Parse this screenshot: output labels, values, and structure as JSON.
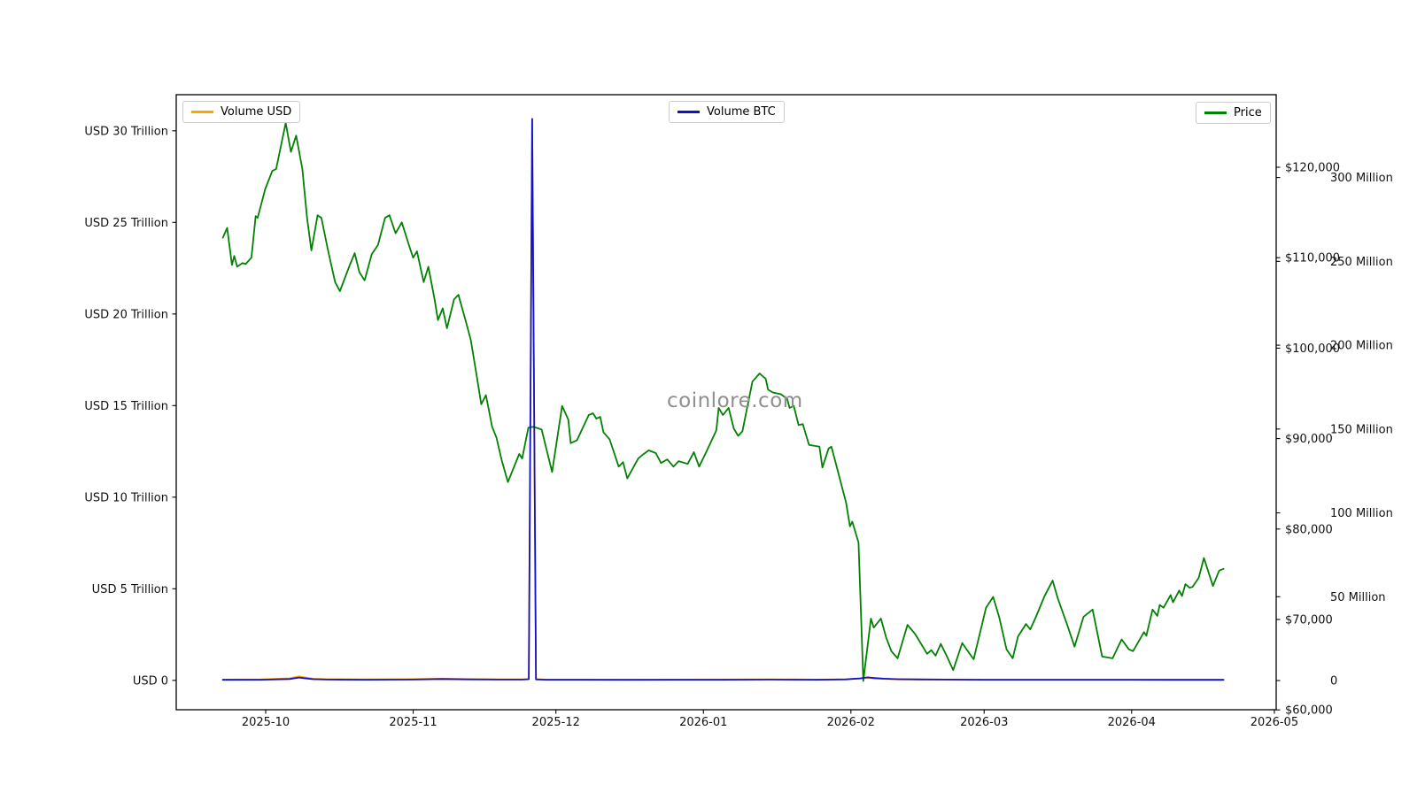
{
  "watermark": "coinlore.com",
  "legends": [
    {
      "label": "Volume USD",
      "color": "#ffa500"
    },
    {
      "label": "Volume BTC",
      "color": "#1111cd"
    },
    {
      "label": "Price",
      "color": "#038103"
    }
  ],
  "colors": {
    "frame": "#000000",
    "tick_text": "#111111",
    "watermark": "#8f8f8f",
    "background": "#ffffff"
  },
  "chart_data": {
    "type": "line",
    "title": "",
    "xlabel": "",
    "ylabel": "",
    "grid": false,
    "x_unit": "days since first data point (approx 2025-09-22)",
    "x_range_dates": [
      "2025-09-22",
      "2026-04-21"
    ],
    "x_axis": {
      "ticks": [
        {
          "label": "2025-10",
          "t": 9
        },
        {
          "label": "2025-11",
          "t": 40
        },
        {
          "label": "2025-12",
          "t": 70
        },
        {
          "label": "2026-01",
          "t": 101
        },
        {
          "label": "2026-02",
          "t": 132
        },
        {
          "label": "2026-03",
          "t": 160
        },
        {
          "label": "2026-04",
          "t": 191
        },
        {
          "label": "2026-05",
          "t": 221
        }
      ]
    },
    "left_axis": {
      "unit": "USD Trillion (volume)",
      "approx_limits": [
        -1.5,
        32
      ],
      "ticks": [
        {
          "label": "USD 30 Trillion",
          "value": 30
        },
        {
          "label": "USD 25 Trillion",
          "value": 25
        },
        {
          "label": "USD 20 Trillion",
          "value": 20
        },
        {
          "label": "USD 15 Trillion",
          "value": 15
        },
        {
          "label": "USD 10 Trillion",
          "value": 10
        },
        {
          "label": "USD 5 Trillion",
          "value": 5
        },
        {
          "label": "USD 0",
          "value": 0
        }
      ]
    },
    "right_price_axis": {
      "unit": "USD (BTC price)",
      "approx_limits": [
        60000,
        128000
      ],
      "ticks": [
        {
          "label": "$120,000",
          "value": 120000
        },
        {
          "label": "$110,000",
          "value": 110000
        },
        {
          "label": "$100,000",
          "value": 100000
        },
        {
          "label": "$90,000",
          "value": 90000
        },
        {
          "label": "$80,000",
          "value": 80000
        },
        {
          "label": "$70,000",
          "value": 70000
        },
        {
          "label": "$60,000",
          "value": 60000
        }
      ]
    },
    "right_btc_axis": {
      "unit": "BTC Million (volume)",
      "approx_limits": [
        -16,
        350
      ],
      "ticks": [
        {
          "label": "300 Million",
          "value": 300
        },
        {
          "label": "250 Million",
          "value": 250
        },
        {
          "label": "200 Million",
          "value": 200
        },
        {
          "label": "150 Million",
          "value": 150
        },
        {
          "label": "100 Million",
          "value": 100
        },
        {
          "label": "50 Million",
          "value": 50
        },
        {
          "label": "0",
          "value": 0
        }
      ]
    },
    "series": [
      {
        "name": "Volume USD",
        "axis": "trillion",
        "color": "#ffa500",
        "note": "flat near 0 except one-day spike ~30.6T, hidden under Volume BTC line",
        "points": [
          [
            0,
            0.045
          ],
          [
            8,
            0.057
          ],
          [
            14,
            0.11
          ],
          [
            16,
            0.22
          ],
          [
            17,
            0.17
          ],
          [
            19,
            0.09
          ],
          [
            22,
            0.065
          ],
          [
            30,
            0.055
          ],
          [
            40,
            0.066
          ],
          [
            46,
            0.095
          ],
          [
            52,
            0.07
          ],
          [
            58,
            0.055
          ],
          [
            63,
            0.055
          ],
          [
            64.3,
            0.073
          ],
          [
            65,
            30.6
          ],
          [
            65.8,
            0.064
          ],
          [
            68,
            0.045
          ],
          [
            75,
            0.044
          ],
          [
            85,
            0.035
          ],
          [
            95,
            0.044
          ],
          [
            105,
            0.047
          ],
          [
            115,
            0.057
          ],
          [
            125,
            0.044
          ],
          [
            131,
            0.058
          ],
          [
            134,
            0.095
          ],
          [
            135.5,
            0.13
          ],
          [
            137,
            0.1
          ],
          [
            139,
            0.077
          ],
          [
            142,
            0.054
          ],
          [
            146,
            0.047
          ],
          [
            152,
            0.04
          ],
          [
            160,
            0.035
          ],
          [
            170,
            0.035
          ],
          [
            180,
            0.035
          ],
          [
            190,
            0.035
          ],
          [
            200,
            0.029
          ],
          [
            210.3,
            0.03
          ]
        ]
      },
      {
        "name": "Price",
        "axis": "price",
        "color": "#038103",
        "points": [
          [
            0,
            112200
          ],
          [
            0.9,
            113300
          ],
          [
            1.9,
            109200
          ],
          [
            2.4,
            110200
          ],
          [
            3,
            109000
          ],
          [
            4.1,
            109400
          ],
          [
            4.8,
            109300
          ],
          [
            6,
            110000
          ],
          [
            6.9,
            114600
          ],
          [
            7.3,
            114400
          ],
          [
            8.9,
            117600
          ],
          [
            10.4,
            119600
          ],
          [
            11.2,
            119800
          ],
          [
            13.2,
            124900
          ],
          [
            14.3,
            121700
          ],
          [
            15.4,
            123500
          ],
          [
            16.7,
            119800
          ],
          [
            17.7,
            114400
          ],
          [
            18.6,
            110800
          ],
          [
            19.9,
            114700
          ],
          [
            20.7,
            114400
          ],
          [
            22.1,
            110800
          ],
          [
            23.6,
            107300
          ],
          [
            24.6,
            106300
          ],
          [
            26.6,
            109100
          ],
          [
            27.7,
            110500
          ],
          [
            28.7,
            108400
          ],
          [
            29.8,
            107500
          ],
          [
            31.3,
            110400
          ],
          [
            32.6,
            111400
          ],
          [
            34.1,
            114400
          ],
          [
            35,
            114700
          ],
          [
            36.3,
            112700
          ],
          [
            37.6,
            113900
          ],
          [
            39.1,
            111400
          ],
          [
            40,
            110000
          ],
          [
            40.8,
            110700
          ],
          [
            42.2,
            107300
          ],
          [
            43.2,
            109000
          ],
          [
            44.5,
            105400
          ],
          [
            45.2,
            103100
          ],
          [
            46.2,
            104400
          ],
          [
            47.1,
            102200
          ],
          [
            48.6,
            105400
          ],
          [
            49.5,
            105900
          ],
          [
            51.2,
            102700
          ],
          [
            52.1,
            100900
          ],
          [
            53.4,
            96800
          ],
          [
            54.3,
            93800
          ],
          [
            55.3,
            94800
          ],
          [
            56.6,
            91300
          ],
          [
            57.5,
            90100
          ],
          [
            58.6,
            87600
          ],
          [
            59.9,
            85200
          ],
          [
            62.3,
            88300
          ],
          [
            62.9,
            87800
          ],
          [
            64.2,
            91200
          ],
          [
            65.3,
            91300
          ],
          [
            67,
            91000
          ],
          [
            69.2,
            86300
          ],
          [
            71.3,
            93600
          ],
          [
            72.6,
            92100
          ],
          [
            73.1,
            89500
          ],
          [
            74.4,
            89800
          ],
          [
            76.9,
            92600
          ],
          [
            77.8,
            92800
          ],
          [
            78.5,
            92200
          ],
          [
            79.3,
            92400
          ],
          [
            80,
            90700
          ],
          [
            81.3,
            89900
          ],
          [
            83.2,
            86900
          ],
          [
            84.1,
            87400
          ],
          [
            85,
            85600
          ],
          [
            87.3,
            87800
          ],
          [
            88.2,
            88200
          ],
          [
            89.5,
            88700
          ],
          [
            91,
            88400
          ],
          [
            92.1,
            87300
          ],
          [
            93.4,
            87700
          ],
          [
            94.7,
            86900
          ],
          [
            95.8,
            87500
          ],
          [
            97.7,
            87200
          ],
          [
            99,
            88500
          ],
          [
            100.1,
            86900
          ],
          [
            101.4,
            88300
          ],
          [
            103.7,
            90900
          ],
          [
            104.2,
            93400
          ],
          [
            105.1,
            92600
          ],
          [
            106.3,
            93400
          ],
          [
            107.4,
            91100
          ],
          [
            108.3,
            90300
          ],
          [
            109.2,
            90800
          ],
          [
            111.3,
            96300
          ],
          [
            112.8,
            97200
          ],
          [
            114.1,
            96600
          ],
          [
            114.6,
            95400
          ],
          [
            115.6,
            95100
          ],
          [
            117.3,
            94900
          ],
          [
            118.6,
            94400
          ],
          [
            119.1,
            93400
          ],
          [
            120,
            93600
          ],
          [
            121,
            91500
          ],
          [
            121.9,
            91600
          ],
          [
            123.2,
            89300
          ],
          [
            125.4,
            89100
          ],
          [
            126,
            86800
          ],
          [
            127.3,
            88900
          ],
          [
            127.9,
            89100
          ],
          [
            129.2,
            86500
          ],
          [
            131,
            82900
          ],
          [
            131.8,
            80300
          ],
          [
            132.3,
            80800
          ],
          [
            133.6,
            78500
          ],
          [
            134.6,
            63200
          ],
          [
            136.2,
            70100
          ],
          [
            136.8,
            69100
          ],
          [
            138.3,
            70100
          ],
          [
            139.4,
            68000
          ],
          [
            140.5,
            66500
          ],
          [
            141.8,
            65700
          ],
          [
            143.9,
            69400
          ],
          [
            145.5,
            68400
          ],
          [
            148,
            66200
          ],
          [
            148.9,
            66600
          ],
          [
            149.8,
            66000
          ],
          [
            150.9,
            67300
          ],
          [
            152.1,
            66000
          ],
          [
            153.5,
            64400
          ],
          [
            155.4,
            67400
          ],
          [
            156.3,
            66700
          ],
          [
            157.8,
            65600
          ],
          [
            160.4,
            71300
          ],
          [
            161.9,
            72500
          ],
          [
            163.2,
            70200
          ],
          [
            164.7,
            66700
          ],
          [
            166,
            65700
          ],
          [
            167.1,
            68100
          ],
          [
            168.8,
            69500
          ],
          [
            169.7,
            68900
          ],
          [
            170.9,
            70300
          ],
          [
            172.7,
            72600
          ],
          [
            174.4,
            74300
          ],
          [
            175.5,
            72300
          ],
          [
            177.4,
            69500
          ],
          [
            179,
            67000
          ],
          [
            180.9,
            70300
          ],
          [
            182.8,
            71100
          ],
          [
            184.8,
            65900
          ],
          [
            187,
            65700
          ],
          [
            188.9,
            67800
          ],
          [
            190.4,
            66700
          ],
          [
            191.3,
            66500
          ],
          [
            193.6,
            68600
          ],
          [
            194.1,
            68200
          ],
          [
            195.4,
            71100
          ],
          [
            196.4,
            70400
          ],
          [
            196.9,
            71600
          ],
          [
            197.7,
            71300
          ],
          [
            199.2,
            72700
          ],
          [
            199.7,
            71900
          ],
          [
            201,
            73200
          ],
          [
            201.6,
            72600
          ],
          [
            202.3,
            73900
          ],
          [
            203.2,
            73500
          ],
          [
            203.8,
            73600
          ],
          [
            205.1,
            74600
          ],
          [
            206.2,
            76800
          ],
          [
            208.1,
            73700
          ],
          [
            209.4,
            75400
          ],
          [
            210.3,
            75600
          ]
        ]
      },
      {
        "name": "Volume BTC",
        "axis": "btc",
        "color": "#1111cd",
        "note": "flat near 0 except one-day spike ~335 Million around 2025-11-26",
        "points": [
          [
            0,
            0.4
          ],
          [
            8,
            0.5
          ],
          [
            14,
            0.9
          ],
          [
            16,
            1.8
          ],
          [
            17,
            1.4
          ],
          [
            19,
            0.8
          ],
          [
            22,
            0.6
          ],
          [
            30,
            0.5
          ],
          [
            40,
            0.6
          ],
          [
            46,
            0.9
          ],
          [
            52,
            0.7
          ],
          [
            58,
            0.6
          ],
          [
            63,
            0.6
          ],
          [
            64.3,
            0.8
          ],
          [
            65,
            335
          ],
          [
            65.8,
            0.7
          ],
          [
            68,
            0.5
          ],
          [
            75,
            0.5
          ],
          [
            85,
            0.4
          ],
          [
            95,
            0.5
          ],
          [
            105,
            0.5
          ],
          [
            115,
            0.6
          ],
          [
            125,
            0.5
          ],
          [
            131,
            0.7
          ],
          [
            134,
            1.3
          ],
          [
            135.5,
            1.9
          ],
          [
            137,
            1.5
          ],
          [
            139,
            1.1
          ],
          [
            142,
            0.8
          ],
          [
            146,
            0.7
          ],
          [
            152,
            0.6
          ],
          [
            160,
            0.5
          ],
          [
            170,
            0.5
          ],
          [
            180,
            0.5
          ],
          [
            190,
            0.5
          ],
          [
            200,
            0.4
          ],
          [
            210.3,
            0.4
          ]
        ]
      }
    ]
  }
}
